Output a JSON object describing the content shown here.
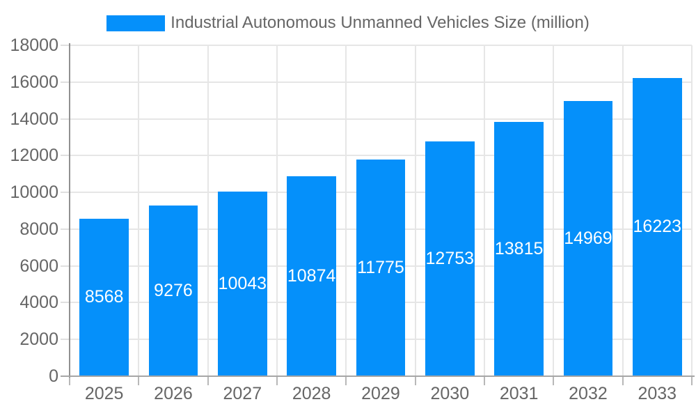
{
  "legend": {
    "label": "Industrial Autonomous Unmanned Vehicles Size (million)"
  },
  "chart_data": {
    "type": "bar",
    "title": "Industrial Autonomous Unmanned Vehicles Size (million)",
    "categories": [
      "2025",
      "2026",
      "2027",
      "2028",
      "2029",
      "2030",
      "2031",
      "2032",
      "2033"
    ],
    "values": [
      8568,
      9276,
      10043,
      10874,
      11775,
      12753,
      13815,
      14969,
      16223
    ],
    "xlabel": "",
    "ylabel": "",
    "ylim": [
      0,
      18000
    ],
    "ytick_step": 2000,
    "yticks": [
      0,
      2000,
      4000,
      6000,
      8000,
      10000,
      12000,
      14000,
      16000,
      18000
    ],
    "grid": true,
    "legend_position": "top-center",
    "value_label_position": "inside-middle",
    "colors": {
      "bar": "#0590fa",
      "value_label": "#ffffff",
      "grid": "#e6e6e6",
      "y_axis_line": "#909090",
      "x_axis_line": "#a6a6a6",
      "y_tick": "#e0e0e0",
      "x_tick": "#b8b8b8",
      "tick_label": "#666666",
      "legend_text": "#666666",
      "background": "#ffffff"
    }
  }
}
